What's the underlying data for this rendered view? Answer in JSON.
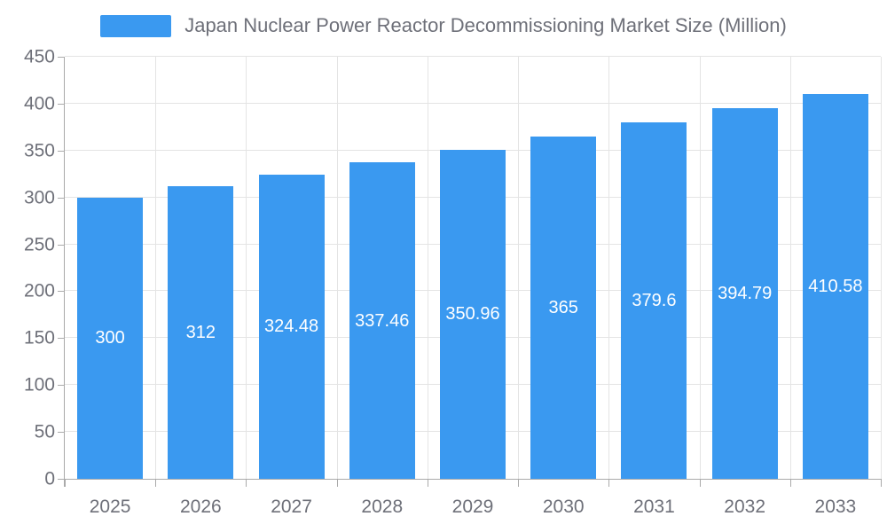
{
  "chart_data": {
    "type": "bar",
    "title": "Japan Nuclear Power Reactor Decommissioning Market Size (Million)",
    "legend": {
      "label": "Japan Nuclear Power Reactor Decommissioning Market Size (Million)",
      "position": "top"
    },
    "categories": [
      "2025",
      "2026",
      "2027",
      "2028",
      "2029",
      "2030",
      "2031",
      "2032",
      "2033"
    ],
    "values": [
      300,
      312,
      324.48,
      337.46,
      350.96,
      365,
      379.6,
      394.79,
      410.58
    ],
    "value_labels": [
      "300",
      "312",
      "324.48",
      "337.46",
      "350.96",
      "365",
      "379.6",
      "394.79",
      "410.58"
    ],
    "xlabel": "",
    "ylabel": "",
    "ylim": [
      0,
      450
    ],
    "ytick_step": 50,
    "ytick_labels": [
      "0",
      "50",
      "100",
      "150",
      "200",
      "250",
      "300",
      "350",
      "400",
      "450"
    ],
    "grid": true,
    "colors": {
      "bar": "#3A99F0",
      "value_label": "#FFFFFF",
      "axis_text": "#6E7079",
      "grid_line": "#E4E4E4",
      "axis_line": "#AAAAAA",
      "background": "#FFFFFF"
    }
  }
}
